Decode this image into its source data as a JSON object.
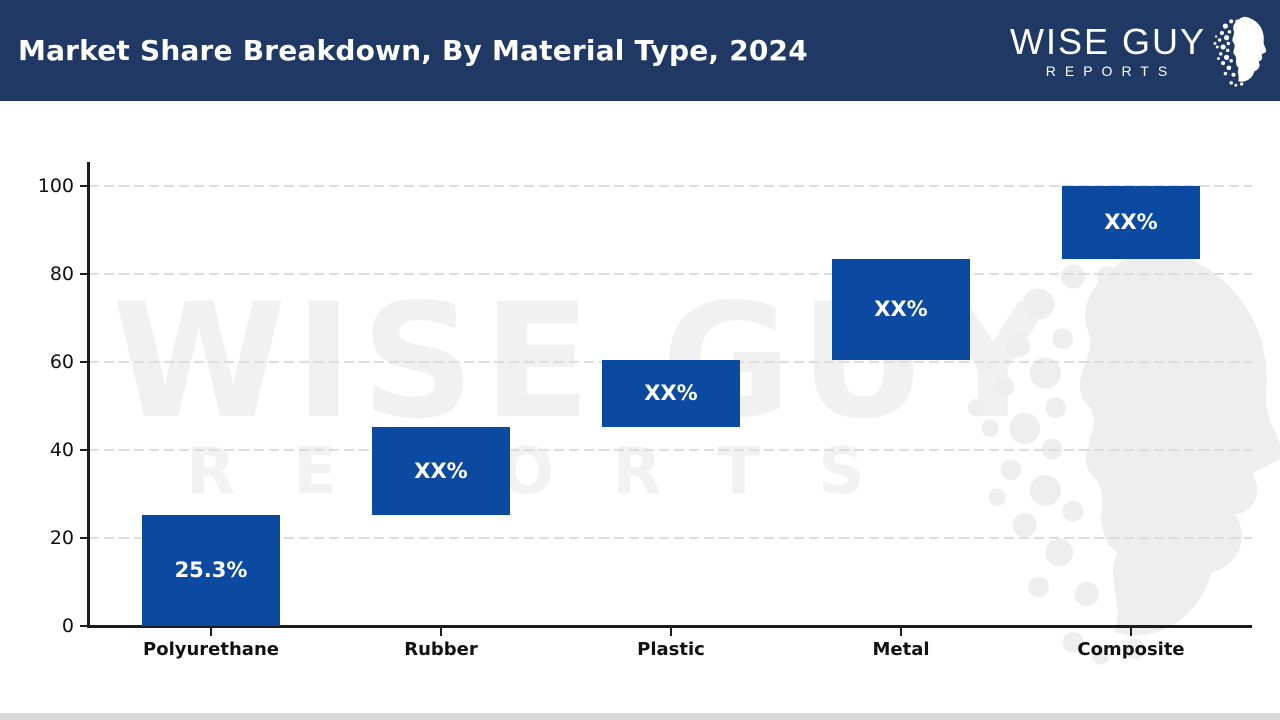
{
  "header": {
    "title": "Market Share Breakdown, By Material Type, 2024",
    "logo": {
      "line1": "WISE GUY",
      "line2": "REPORTS"
    }
  },
  "watermark": {
    "line1": "WISE GUY",
    "line2": "REPORTS"
  },
  "chart_data": {
    "type": "bar",
    "subtype": "floating-waterfall",
    "title": "Market Share Breakdown, By Material Type, 2024",
    "categories": [
      "Polyurethane",
      "Rubber",
      "Plastic",
      "Metal",
      "Composite"
    ],
    "segments": [
      {
        "category": "Polyurethane",
        "start": 0,
        "end": 25.3,
        "label": "25.3%"
      },
      {
        "category": "Rubber",
        "start": 25.3,
        "end": 45.3,
        "label": "XX%"
      },
      {
        "category": "Plastic",
        "start": 45.3,
        "end": 60.5,
        "label": "XX%"
      },
      {
        "category": "Metal",
        "start": 60.5,
        "end": 83.3,
        "label": "XX%"
      },
      {
        "category": "Composite",
        "start": 83.3,
        "end": 100,
        "label": "XX%"
      }
    ],
    "yticks": [
      0,
      20,
      40,
      60,
      80,
      100
    ],
    "ylim": [
      0,
      105
    ],
    "xlabel": "",
    "ylabel": "",
    "grid": "horizontal-dashed",
    "legend": "none"
  },
  "colors": {
    "header_bg": "#1f3864",
    "bar": "#0b4aa0",
    "axis": "#1c1c1c",
    "gridline": "#dcdcdc",
    "bar_label_text": "#ffffff",
    "tick_label_text": "#111111",
    "watermark": "#f1f1f1",
    "footer_strip": "#d9d9d9"
  }
}
